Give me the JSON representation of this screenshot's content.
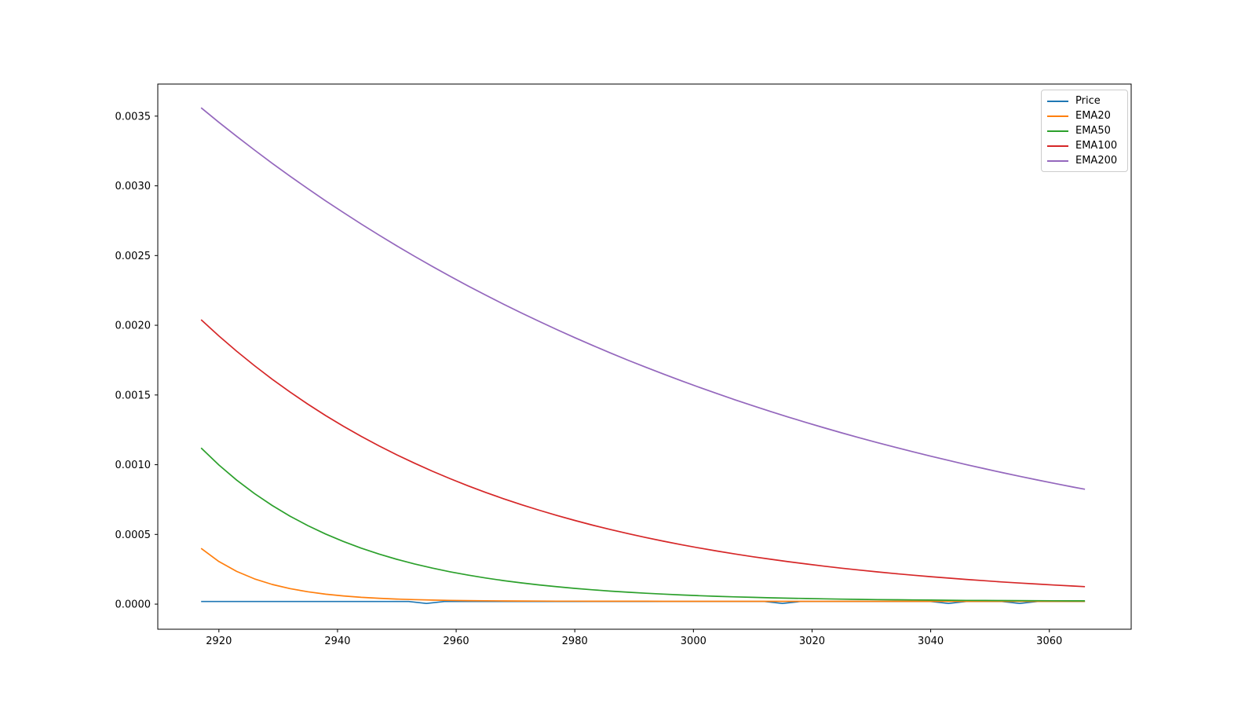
{
  "chart_data": {
    "type": "line",
    "title": "",
    "xlabel": "",
    "ylabel": "",
    "grid": false,
    "legend_position": "upper right",
    "xlim": [
      2909.7,
      3073.8
    ],
    "ylim": [
      -0.00018,
      0.00373
    ],
    "x_ticks": [
      {
        "v": 2920,
        "label": "2920"
      },
      {
        "v": 2940,
        "label": "2940"
      },
      {
        "v": 2960,
        "label": "2960"
      },
      {
        "v": 2980,
        "label": "2980"
      },
      {
        "v": 3000,
        "label": "3000"
      },
      {
        "v": 3020,
        "label": "3020"
      },
      {
        "v": 3040,
        "label": "3040"
      },
      {
        "v": 3060,
        "label": "3060"
      }
    ],
    "y_ticks": [
      {
        "v": 0.0,
        "label": "0.0000"
      },
      {
        "v": 0.0005,
        "label": "0.0005"
      },
      {
        "v": 0.001,
        "label": "0.0010"
      },
      {
        "v": 0.0015,
        "label": "0.0015"
      },
      {
        "v": 0.002,
        "label": "0.0020"
      },
      {
        "v": 0.0025,
        "label": "0.0025"
      },
      {
        "v": 0.003,
        "label": "0.0030"
      },
      {
        "v": 0.0035,
        "label": "0.0035"
      }
    ],
    "x": [
      2917,
      2920,
      2923,
      2926,
      2929,
      2932,
      2935,
      2938,
      2941,
      2944,
      2947,
      2950,
      2953,
      2956,
      2959,
      2962,
      2965,
      2968,
      2971,
      2974,
      2977,
      2980,
      2983,
      2986,
      2989,
      2992,
      2995,
      2998,
      3001,
      3004,
      3007,
      3010,
      3013,
      3016,
      3019,
      3022,
      3025,
      3028,
      3031,
      3034,
      3037,
      3040,
      3043,
      3046,
      3049,
      3052,
      3055,
      3058,
      3061,
      3064,
      3066
    ],
    "series": [
      {
        "name": "Price",
        "color": "#1f77b4",
        "points": [
          [
            2917,
            1.86e-05
          ],
          [
            2952,
            1.86e-05
          ],
          [
            2955,
            5e-06
          ],
          [
            2958,
            1.86e-05
          ],
          [
            3012,
            1.86e-05
          ],
          [
            3015,
            4.8e-06
          ],
          [
            3018,
            1.86e-05
          ],
          [
            3040,
            1.86e-05
          ],
          [
            3043,
            5e-06
          ],
          [
            3046,
            1.86e-05
          ],
          [
            3052,
            1.86e-05
          ],
          [
            3055,
            5e-06
          ],
          [
            3058,
            1.86e-05
          ],
          [
            3066,
            1.86e-05
          ]
        ]
      },
      {
        "name": "EMA20",
        "color": "#ff7f0e",
        "values": [
          0.0004,
          0.0003056,
          0.0002346,
          0.0001813,
          0.0001412,
          0.0001111,
          8.85e-05,
          7.14e-05,
          5.87e-05,
          4.9e-05,
          4.18e-05,
          3.64e-05,
          3.23e-05,
          2.93e-05,
          2.7e-05,
          2.52e-05,
          2.39e-05,
          2.3e-05,
          2.22e-05,
          2.17e-05,
          2.13e-05,
          2.09e-05,
          2.07e-05,
          2.05e-05,
          2.04e-05,
          2.03e-05,
          2.02e-05,
          2.02e-05,
          2.01e-05,
          2.01e-05,
          2.01e-05,
          2e-05,
          2e-05,
          2e-05,
          2e-05,
          2e-05,
          2e-05,
          2e-05,
          2e-05,
          2e-05,
          2e-05,
          2e-05,
          2e-05,
          2e-05,
          2e-05,
          2e-05,
          2e-05,
          2e-05,
          2e-05,
          2e-05,
          2e-05
        ]
      },
      {
        "name": "EMA50",
        "color": "#2ca02c",
        "values": [
          0.00112,
          0.0009979,
          0.0008894,
          0.0007929,
          0.0007071,
          0.0006308,
          0.000563,
          0.0005028,
          0.0004492,
          0.0004016,
          0.0003592,
          0.0003216,
          0.0002881,
          0.0002583,
          0.0002319,
          0.0002084,
          0.0001875,
          0.0001689,
          0.0001524,
          0.0001377,
          0.0001246,
          0.000113,
          0.0001027,
          9.35e-05,
          8.53e-05,
          7.81e-05,
          7.16e-05,
          6.59e-05,
          6.08e-05,
          5.63e-05,
          5.23e-05,
          4.87e-05,
          4.55e-05,
          4.27e-05,
          4.02e-05,
          3.79e-05,
          3.59e-05,
          3.42e-05,
          3.26e-05,
          3.12e-05,
          2.99e-05,
          2.88e-05,
          2.78e-05,
          2.7e-05,
          2.62e-05,
          2.55e-05,
          2.49e-05,
          2.44e-05,
          2.39e-05,
          2.34e-05,
          2.32e-05
        ]
      },
      {
        "name": "EMA100",
        "color": "#d62728",
        "values": [
          0.00204,
          0.0019235,
          0.0018137,
          0.0017102,
          0.0016128,
          0.0015209,
          0.0014343,
          0.0013527,
          0.0012759,
          0.0012034,
          0.0011352,
          0.0010708,
          0.0010102,
          0.0009531,
          0.0008993,
          0.0008486,
          0.0008008,
          0.0007557,
          0.0007133,
          0.0006733,
          0.0006356,
          0.0006001,
          0.0005667,
          0.0005351,
          0.0005054,
          0.0004774,
          0.000451,
          0.0004262,
          0.0004028,
          0.0003807,
          0.0003599,
          0.0003403,
          0.0003218,
          0.0003044,
          0.000288,
          0.0002725,
          0.000258,
          0.0002442,
          0.0002313,
          0.0002191,
          0.0002076,
          0.0001968,
          0.0001866,
          0.000177,
          0.0001679,
          0.0001594,
          0.0001514,
          0.0001438,
          0.0001366,
          0.0001299,
          0.0001256
        ]
      },
      {
        "name": "EMA200",
        "color": "#9467bd",
        "values": [
          0.00356,
          0.0034559,
          0.0033549,
          0.0032568,
          0.0031616,
          0.0030692,
          0.0029795,
          0.0028925,
          0.002808,
          0.002726,
          0.0026464,
          0.0025692,
          0.0024942,
          0.0024215,
          0.0023508,
          0.0022823,
          0.0022158,
          0.0021512,
          0.0020885,
          0.0020277,
          0.0019686,
          0.0019113,
          0.0018557,
          0.0018017,
          0.0017493,
          0.0016985,
          0.0016491,
          0.0016012,
          0.0015547,
          0.0015096,
          0.0014658,
          0.0014233,
          0.001382,
          0.0013419,
          0.0013031,
          0.0012653,
          0.0012287,
          0.0011932,
          0.0011587,
          0.0011252,
          0.0010927,
          0.0010611,
          0.0010305,
          0.0010008,
          0.0009719,
          0.000944,
          0.0009168,
          0.0008904,
          0.0008648,
          0.00084,
          0.0008238
        ]
      }
    ]
  }
}
